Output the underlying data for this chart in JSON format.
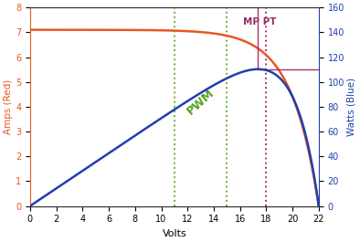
{
  "title": "",
  "xlabel": "Volts",
  "ylabel_left": "Amps (Red)",
  "ylabel_right": "Watts (Blue)",
  "xlim": [
    0,
    22
  ],
  "ylim_left": [
    0,
    8
  ],
  "ylim_right": [
    0,
    160
  ],
  "xticks": [
    0,
    2,
    4,
    6,
    8,
    10,
    12,
    14,
    16,
    18,
    20,
    22
  ],
  "yticks_left": [
    0,
    1,
    2,
    3,
    4,
    5,
    6,
    7,
    8
  ],
  "yticks_right": [
    0,
    20,
    40,
    60,
    80,
    100,
    120,
    140,
    160
  ],
  "isc": 7.1,
  "voc": 22.0,
  "vmp": 18.0,
  "imp": 6.08,
  "color_amps": "#e85820",
  "color_watts": "#2040b0",
  "color_pwm_line1": "#70b030",
  "color_pwm_line2": "#70b030",
  "color_mppt_line": "#b03070",
  "pwm_v1": 11.0,
  "pwm_v2": 15.0,
  "mppt_v": 18.0,
  "pwm_label": "PWM",
  "mppt_label": "MP PT",
  "pwm_label_color": "#50a020",
  "mppt_label_color": "#903060",
  "background_color": "#ffffff"
}
